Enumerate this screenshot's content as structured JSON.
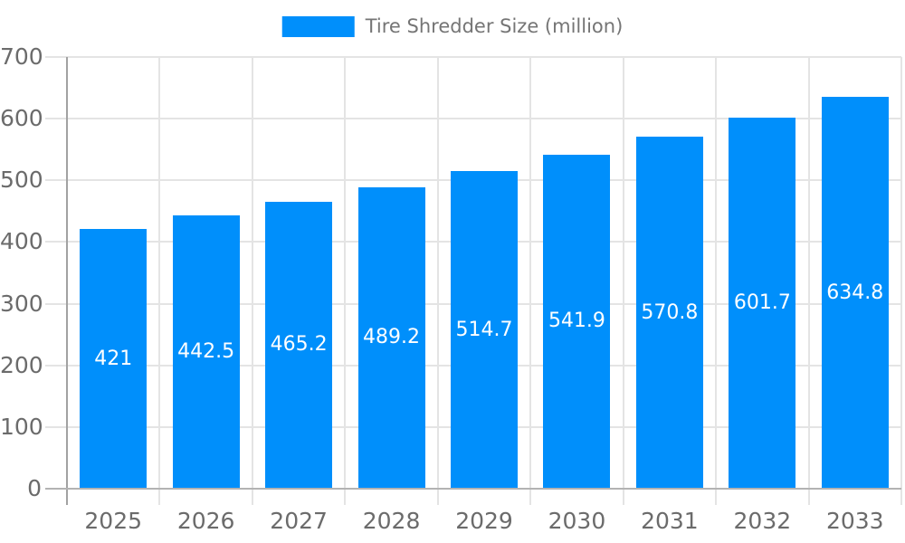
{
  "legend": {
    "label": "Tire Shredder Size (million)"
  },
  "chart_data": {
    "type": "bar",
    "title": "Tire Shredder Size (million)",
    "categories": [
      "2025",
      "2026",
      "2027",
      "2028",
      "2029",
      "2030",
      "2031",
      "2032",
      "2033"
    ],
    "values": [
      421,
      442.5,
      465.2,
      489.2,
      514.7,
      541.9,
      570.8,
      601.7,
      634.8
    ],
    "value_labels": [
      "421",
      "442.5",
      "465.2",
      "489.2",
      "514.7",
      "541.9",
      "570.8",
      "601.7",
      "634.8"
    ],
    "xlabel": "",
    "ylabel": "",
    "ylim": [
      0,
      700
    ],
    "ytick_step": 100,
    "ytick_labels": [
      "0",
      "100",
      "200",
      "300",
      "400",
      "500",
      "600",
      "700"
    ],
    "grid": true,
    "legend_position": "top"
  },
  "colors": {
    "bar": "#008FFB",
    "grid": "#e4e4e4",
    "x_axis_line": "#b3b3b3",
    "y_axis_line": "#a2a2a2",
    "axis_label": "#6b6b6b",
    "legend_text": "#757575",
    "value_label": "#ffffff",
    "background": "#ffffff"
  }
}
